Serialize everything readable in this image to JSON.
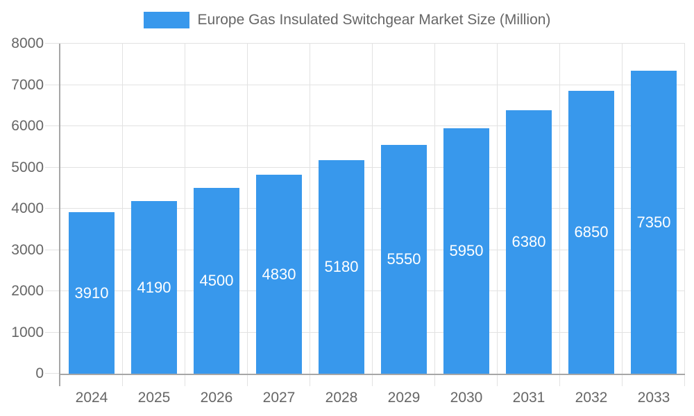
{
  "legend": {
    "label": "Europe Gas Insulated Switchgear Market Size (Million)",
    "swatch_color": "#3898ec"
  },
  "chart_data": {
    "type": "bar",
    "title": "Europe Gas Insulated Switchgear Market Size (Million)",
    "categories": [
      "2024",
      "2025",
      "2026",
      "2027",
      "2028",
      "2029",
      "2030",
      "2031",
      "2032",
      "2033"
    ],
    "values": [
      3910,
      4190,
      4500,
      4830,
      5180,
      5550,
      5950,
      6380,
      6850,
      7350
    ],
    "xlabel": "",
    "ylabel": "",
    "ylim": [
      0,
      8000
    ],
    "yticks": [
      0,
      1000,
      2000,
      3000,
      4000,
      5000,
      6000,
      7000,
      8000
    ],
    "grid": true,
    "legend_position": "top-center",
    "value_labels": "inside-center",
    "colors": {
      "bar": "#3898ec",
      "axis": "#a6a6a6",
      "grid": "#e2e2e2",
      "tick_text": "#666666",
      "value_text": "#ffffff",
      "background": "#ffffff"
    }
  }
}
